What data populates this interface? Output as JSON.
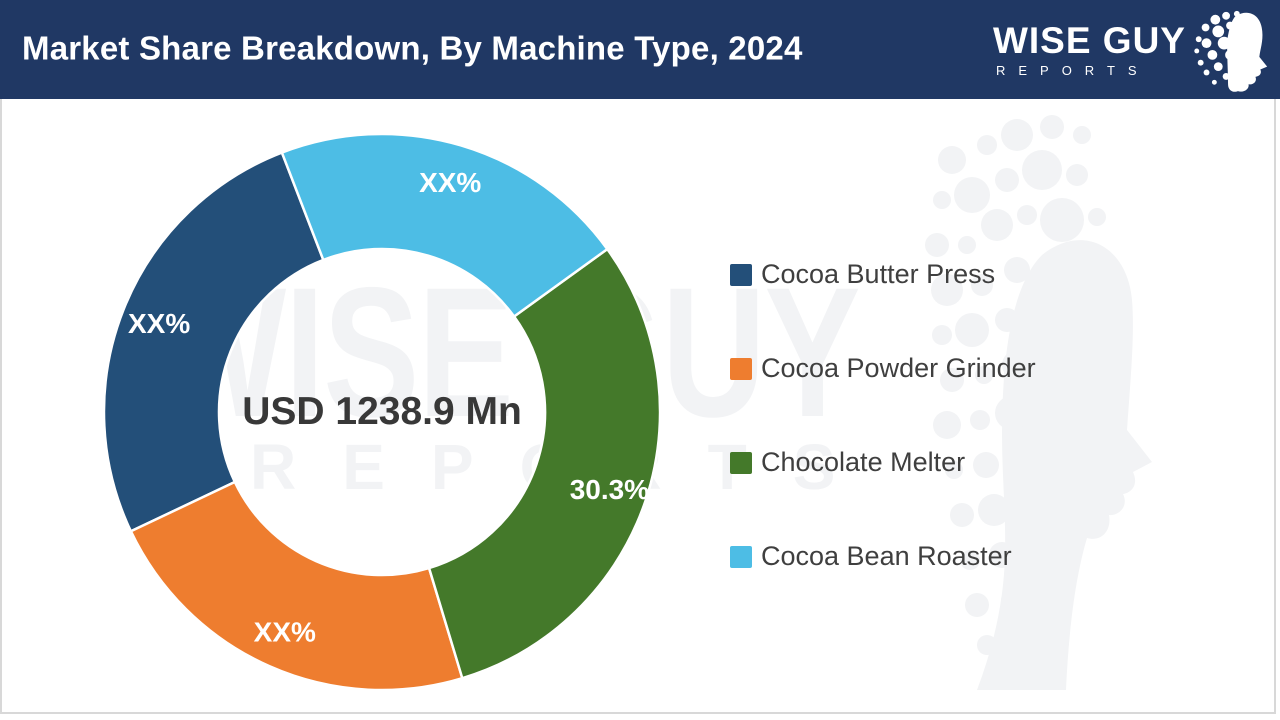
{
  "header": {
    "title": "Market Share Breakdown, By Machine Type, 2024",
    "logo": {
      "brand": "WISE GUY",
      "sub": "REPORTS"
    }
  },
  "watermark": {
    "line1": "WISE GUY",
    "line2": "REPORTS"
  },
  "chart_data": {
    "type": "pie",
    "subtype": "donut",
    "title": "Market Share Breakdown, By Machine Type, 2024",
    "center_label": "USD 1238.9 Mn",
    "legend_position": "right",
    "start_angle_compass_deg": 338.9,
    "direction": "counterclockwise",
    "slices": [
      {
        "label": "Cocoa Butter Press",
        "value_pct": 26.2,
        "display": "XX%",
        "color": "#234F79"
      },
      {
        "label": "Cocoa Powder Grinder",
        "value_pct": 22.6,
        "display": "XX%",
        "color": "#EE7D2F"
      },
      {
        "label": "Chocolate Melter",
        "value_pct": 30.3,
        "display": "30.3%",
        "color": "#44792A"
      },
      {
        "label": "Cocoa Bean Roaster",
        "value_pct": 20.9,
        "display": "XX%",
        "color": "#4DBDE5"
      }
    ]
  },
  "colors": {
    "header_bg": "#203864",
    "title_text": "#FFFFFF",
    "center_text": "#383838",
    "legend_text": "#3F3F3F",
    "watermark": "#F2F3F5",
    "frame_border": "#D8D8D8",
    "slice_gap": "#FFFFFF"
  }
}
